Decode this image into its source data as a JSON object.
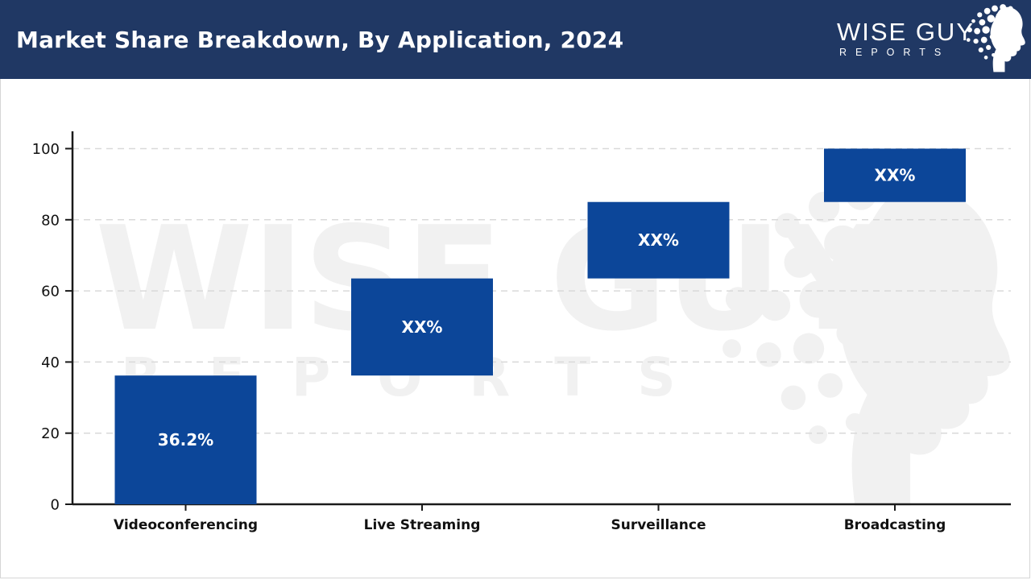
{
  "header": {
    "title": "Market Share Breakdown, By Application, 2024",
    "logo": {
      "line1": "WISE GUY",
      "line2": "REPORTS"
    }
  },
  "watermark": {
    "line1": "WISE GUY",
    "line2": "REPORTS"
  },
  "colors": {
    "header_bg": "#203864",
    "bar": "#0c4699",
    "grid": "#d9d9d9",
    "watermark": "#f1f1f1"
  },
  "chart_data": {
    "type": "bar",
    "subtype": "waterfall",
    "title": "Market Share Breakdown, By Application, 2024",
    "categories": [
      "Videoconferencing",
      "Live Streaming",
      "Surveillance",
      "Broadcasting"
    ],
    "segments": [
      {
        "category": "Videoconferencing",
        "start": 0,
        "end": 36.2,
        "label": "36.2%"
      },
      {
        "category": "Live Streaming",
        "start": 36.2,
        "end": 63.5,
        "label": "XX%"
      },
      {
        "category": "Surveillance",
        "start": 63.5,
        "end": 85.0,
        "label": "XX%"
      },
      {
        "category": "Broadcasting",
        "start": 85.0,
        "end": 100.0,
        "label": "XX%"
      }
    ],
    "yticks": [
      0,
      20,
      40,
      60,
      80,
      100
    ],
    "ylim": [
      0,
      105
    ],
    "xlabel": "",
    "ylabel": "",
    "grid": "horizontal-dashed",
    "legend": "none",
    "bar_color": "#0c4699",
    "value_label_color": "#ffffff"
  }
}
